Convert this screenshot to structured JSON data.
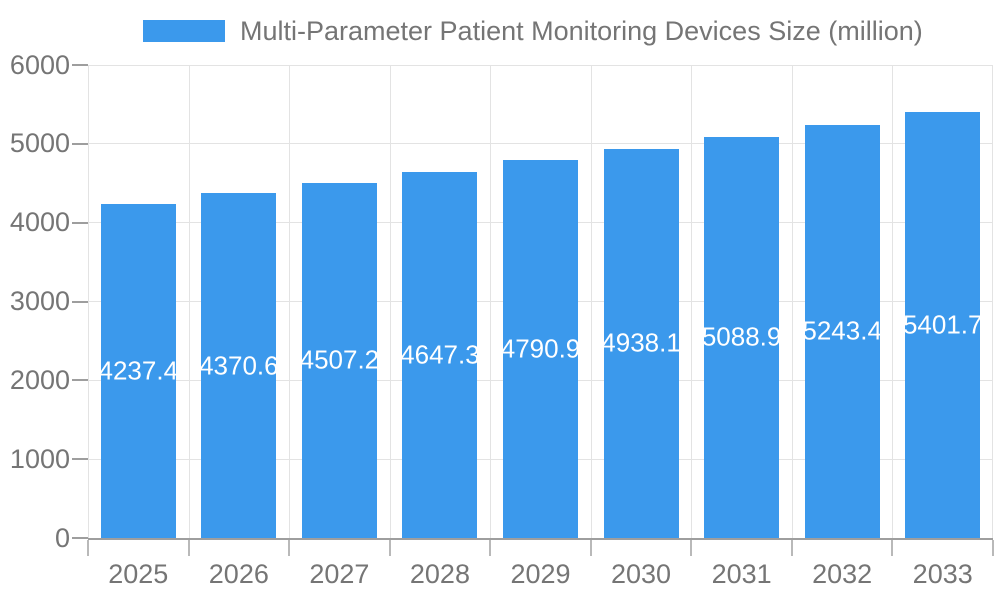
{
  "legend": {
    "label": "Multi-Parameter Patient Monitoring Devices Size (million)"
  },
  "chart_data": {
    "type": "bar",
    "title": "Multi-Parameter Patient Monitoring Devices Size (million)",
    "categories": [
      "2025",
      "2026",
      "2027",
      "2028",
      "2029",
      "2030",
      "2031",
      "2032",
      "2033"
    ],
    "values": [
      4237.4,
      4370.6,
      4507.2,
      4647.3,
      4790.9,
      4938.1,
      5088.9,
      5243.4,
      5401.7
    ],
    "value_labels": [
      "4237.4",
      "4370.6",
      "4507.2",
      "4647.3",
      "4790.9",
      "4938.1",
      "5088.9",
      "5243.4",
      "5401.7"
    ],
    "xlabel": "",
    "ylabel": "",
    "ylim": [
      0,
      6000
    ],
    "yticks": [
      0,
      1000,
      2000,
      3000,
      4000,
      5000,
      6000
    ],
    "grid": true,
    "legend_position": "top",
    "colors": {
      "bar": "#3b99ec",
      "bar_value_text": "#ffffff",
      "axis_text": "#757575",
      "gridline": "#e3e3e3",
      "axis_line": "#9e9e9e",
      "background": "#ffffff"
    }
  }
}
